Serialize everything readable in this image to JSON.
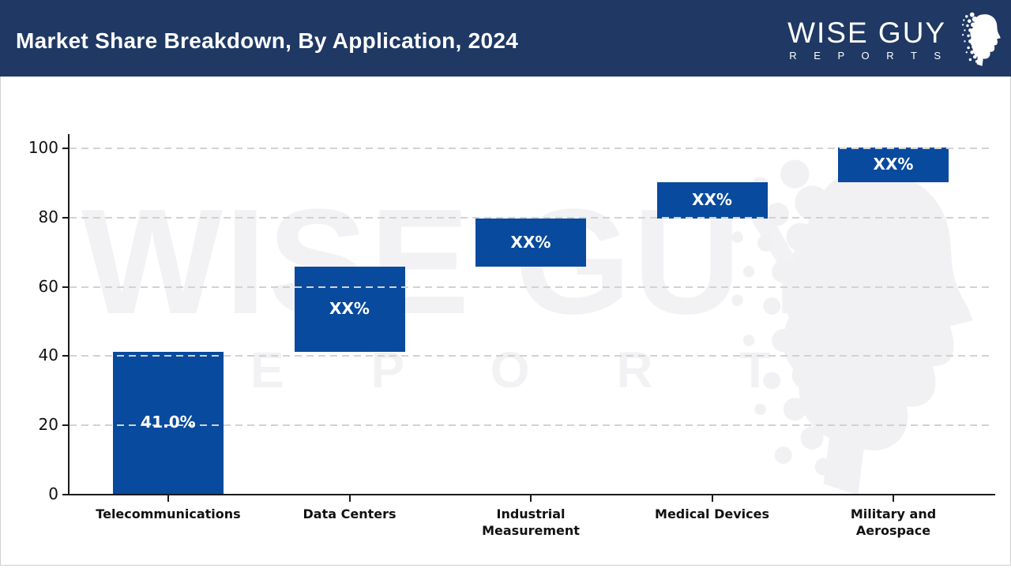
{
  "header": {
    "title": "Market Share Breakdown, By Application, 2024",
    "background_color": "#1f3864",
    "logo": {
      "wordmark": "WISE GUY",
      "subtext": "R E P O R T S"
    }
  },
  "watermark": {
    "line1": "WISE GUY",
    "line2": "R E P O R T S"
  },
  "chart_data": {
    "type": "bar",
    "subtype": "floating-waterfall",
    "title": "Market Share Breakdown, By Application, 2024",
    "categories": [
      [
        "Telecommunications"
      ],
      [
        "Data Centers"
      ],
      [
        "Industrial",
        "Measurement"
      ],
      [
        "Medical Devices"
      ],
      [
        "Military and",
        "Aerospace"
      ]
    ],
    "segments": [
      {
        "category": "Telecommunications",
        "start": 0,
        "end": 41.0,
        "value": 41.0,
        "label": "41.0%"
      },
      {
        "category": "Data Centers",
        "start": 41.0,
        "end": 65.5,
        "value": 24.5,
        "label": "XX%"
      },
      {
        "category": "Industrial Measurement",
        "start": 65.5,
        "end": 79.5,
        "value": 14.0,
        "label": "XX%"
      },
      {
        "category": "Medical Devices",
        "start": 79.5,
        "end": 90.0,
        "value": 10.5,
        "label": "XX%"
      },
      {
        "category": "Military and Aerospace",
        "start": 90.0,
        "end": 100.0,
        "value": 10.0,
        "label": "XX%"
      }
    ],
    "ylim": [
      0,
      100
    ],
    "yticks": [
      0,
      20,
      40,
      60,
      80,
      100
    ],
    "xlabel": "",
    "ylabel": "",
    "grid": "horizontal dashed, drawn over bars",
    "legend": "none",
    "bar_color": "#084a9e",
    "bar_label_color": "#ffffff",
    "axis_color": "#1a1a1a",
    "grid_color": "#d2d2d2"
  }
}
